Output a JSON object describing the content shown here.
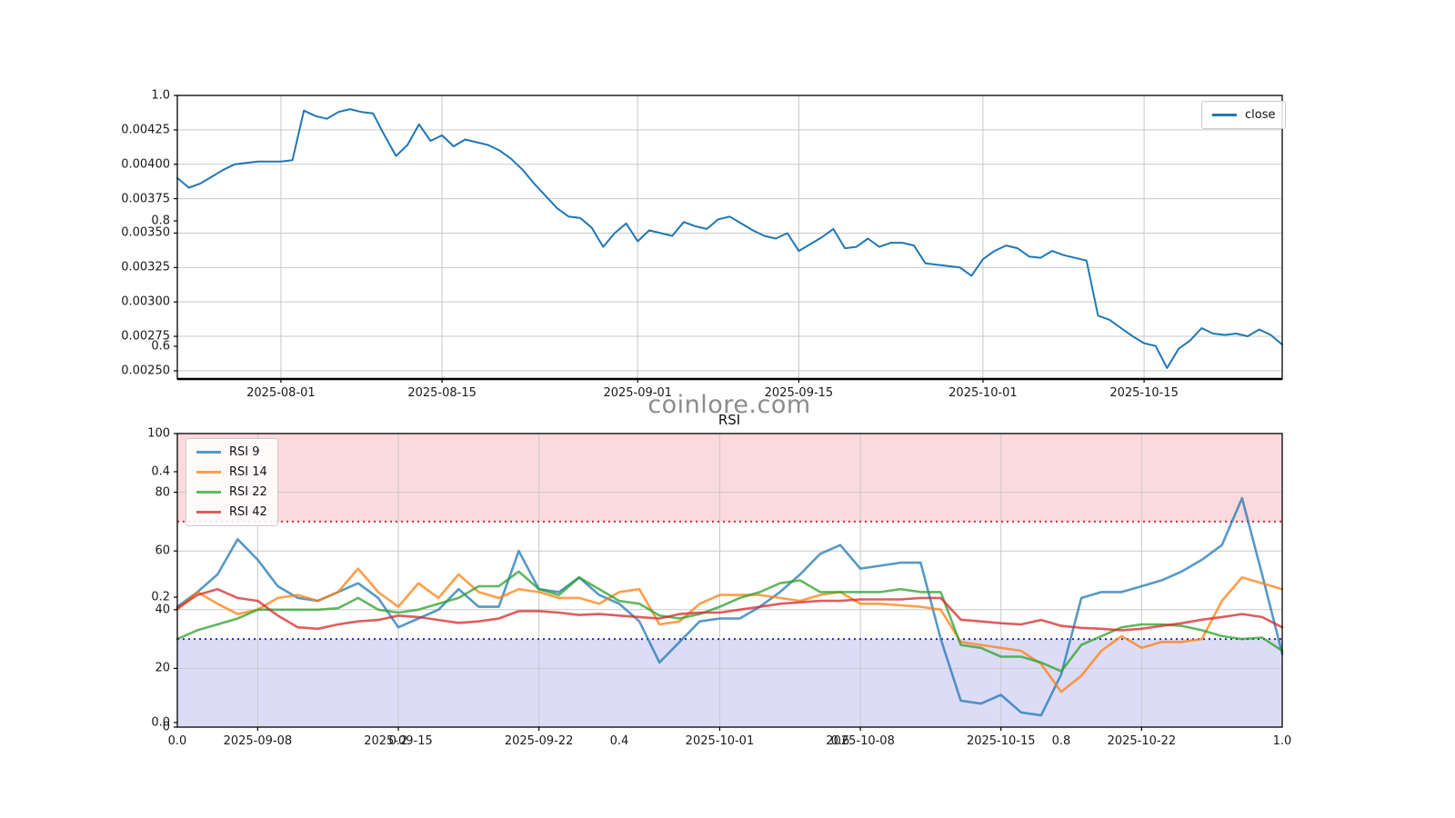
{
  "watermark": "coinlore.com",
  "charts": [
    {
      "id": "price",
      "title": "",
      "legend": {
        "position": "upper-right",
        "entries": [
          {
            "label": "close",
            "color": "#1f77b4",
            "alpha": 1
          }
        ]
      },
      "chart_data": {
        "type": "line",
        "x_start_date": "2025-07-23",
        "xticks": [
          "2025-08-01",
          "2025-08-15",
          "2025-09-01",
          "2025-09-15",
          "2025-10-01",
          "2025-10-15"
        ],
        "ylim": [
          0.00244,
          0.0045
        ],
        "yticks": [
          0.0025,
          0.00275,
          0.003,
          0.00325,
          0.0035,
          0.00375,
          0.004,
          0.00425
        ],
        "ytick_labels": [
          "0.00250",
          "0.00275",
          "0.00300",
          "0.00325",
          "0.00350",
          "0.00375",
          "0.00400",
          "0.00425"
        ],
        "grid": true,
        "series": [
          {
            "name": "close",
            "color": "#1f77b4",
            "alpha": 1,
            "width": 2,
            "values": [
              0.0039,
              0.00383,
              0.00386,
              0.00391,
              0.00396,
              0.004,
              0.00401,
              0.00402,
              0.00402,
              0.00402,
              0.00403,
              0.00439,
              0.00435,
              0.00433,
              0.00438,
              0.0044,
              0.00438,
              0.00437,
              0.00421,
              0.00406,
              0.00414,
              0.00429,
              0.00417,
              0.00421,
              0.00413,
              0.00418,
              0.00416,
              0.00414,
              0.0041,
              0.00404,
              0.00396,
              0.00386,
              0.00377,
              0.00368,
              0.00362,
              0.00361,
              0.00354,
              0.0034,
              0.0035,
              0.00357,
              0.00344,
              0.00352,
              0.0035,
              0.00348,
              0.00358,
              0.00355,
              0.00353,
              0.0036,
              0.00362,
              0.00357,
              0.00352,
              0.00348,
              0.00346,
              0.0035,
              0.00337,
              0.00342,
              0.00347,
              0.00353,
              0.00339,
              0.0034,
              0.00346,
              0.0034,
              0.00343,
              0.00343,
              0.00341,
              0.00328,
              0.00327,
              0.00326,
              0.00325,
              0.00319,
              0.00331,
              0.00337,
              0.00341,
              0.00339,
              0.00333,
              0.00332,
              0.00337,
              0.00334,
              0.00332,
              0.0033,
              0.0029,
              0.00287,
              0.00281,
              0.00275,
              0.0027,
              0.00268,
              0.00252,
              0.00266,
              0.00272,
              0.00281,
              0.00277,
              0.00276,
              0.00277,
              0.00275,
              0.0028,
              0.00276,
              0.00269
            ]
          }
        ]
      }
    },
    {
      "id": "rsi",
      "title": "RSI",
      "legend": {
        "position": "upper-left",
        "entries": [
          {
            "label": "RSI 9",
            "color": "#1f77b4",
            "alpha": 0.75
          },
          {
            "label": "RSI 14",
            "color": "#ff7f0e",
            "alpha": 0.75
          },
          {
            "label": "RSI 22",
            "color": "#2ca02c",
            "alpha": 0.75
          },
          {
            "label": "RSI 42",
            "color": "#d62728",
            "alpha": 0.75
          }
        ]
      },
      "chart_data": {
        "type": "line",
        "x_start_date": "2025-09-04",
        "xticks": [
          "2025-09-08",
          "2025-09-15",
          "2025-09-22",
          "2025-10-01",
          "2025-10-08",
          "2025-10-15",
          "2025-10-22"
        ],
        "ylim": [
          0,
          100
        ],
        "yticks": [
          0,
          20,
          40,
          60,
          80,
          100
        ],
        "ytick_labels": [
          "0",
          "20",
          "40",
          "60",
          "80",
          "100"
        ],
        "grid": true,
        "bands": [
          {
            "from": 70,
            "to": 100,
            "color": "#fbdadd",
            "meaning": "overbought-zone"
          },
          {
            "from": 0,
            "to": 30,
            "color": "#dddcf6",
            "meaning": "oversold-zone"
          }
        ],
        "thresholds": [
          {
            "value": 70,
            "color": "#d62a3a",
            "style": "dotted"
          },
          {
            "value": 30,
            "color": "#2a2ac0",
            "style": "dotted"
          }
        ],
        "series": [
          {
            "name": "RSI 9",
            "color": "#1f77b4",
            "alpha": 0.75,
            "width": 2.6,
            "values": [
              41,
              46,
              52,
              64,
              57,
              48,
              44,
              43,
              46,
              49,
              44,
              34,
              37,
              40,
              47,
              41,
              41,
              60,
              47,
              46,
              51,
              45,
              42,
              36,
              22,
              29,
              36,
              37,
              37,
              41,
              46,
              52,
              59,
              62,
              54,
              55,
              56,
              56,
              30,
              9,
              8,
              11,
              5,
              4,
              18,
              44,
              46,
              46,
              48,
              50,
              53,
              57,
              62,
              78,
              52,
              25
            ]
          },
          {
            "name": "RSI 14",
            "color": "#ff7f0e",
            "alpha": 0.75,
            "width": 2.6,
            "values": [
              40,
              46,
              42,
              38.5,
              40,
              44,
              45,
              43,
              46,
              54,
              46,
              41,
              49,
              44,
              52,
              46,
              44,
              47,
              46,
              44,
              44,
              42,
              46,
              47,
              35,
              36,
              42,
              45,
              45,
              45,
              44,
              43,
              45,
              46,
              42,
              42,
              41.5,
              41,
              40,
              29,
              28,
              27,
              26,
              21.5,
              12,
              17.5,
              26,
              31,
              27,
              29,
              29,
              30,
              43,
              51,
              49,
              47
            ]
          },
          {
            "name": "RSI 22",
            "color": "#2ca02c",
            "alpha": 0.75,
            "width": 2.6,
            "values": [
              30,
              33,
              35,
              37,
              40,
              40,
              40,
              40,
              40.5,
              44,
              40,
              39,
              40,
              42,
              44,
              48,
              48,
              53,
              47,
              45,
              51,
              47,
              43,
              42,
              38,
              37,
              38.5,
              41,
              44,
              46,
              49,
              50,
              46,
              46,
              46,
              46,
              47,
              46,
              46,
              28,
              27,
              24,
              24,
              22,
              19,
              28,
              31,
              34,
              35,
              35,
              34.5,
              33,
              31,
              30,
              30.5,
              26
            ]
          },
          {
            "name": "RSI 42",
            "color": "#d62728",
            "alpha": 0.75,
            "width": 2.6,
            "values": [
              40.5,
              45,
              47,
              44,
              43,
              38,
              34,
              33.5,
              35,
              36,
              36.5,
              38,
              37.5,
              36.5,
              35.5,
              36,
              37,
              39.5,
              39.5,
              39,
              38.2,
              38.5,
              38,
              37.5,
              37,
              38.5,
              39,
              39,
              40,
              41,
              42,
              42.5,
              43,
              43,
              43.5,
              43.5,
              43.5,
              44,
              44,
              36.6,
              36,
              35.4,
              35,
              36.5,
              34.5,
              33.8,
              33.5,
              33,
              33.5,
              34.5,
              35.4,
              36.6,
              37.5,
              38.5,
              37.5,
              34
            ]
          }
        ]
      }
    }
  ],
  "overlay_axis": {
    "y_labels": [
      "1.0",
      "0.8",
      "0.6",
      "0.4",
      "0.2",
      "0.0"
    ],
    "x_labels": [
      "0.0",
      "0.2",
      "0.4",
      "0.6",
      "0.8",
      "1.0"
    ]
  },
  "colors": {
    "grid": "#c9c9c9",
    "spine": "#000000",
    "tick_text": "#1a1a1a",
    "watermark": "#8c8c8c"
  }
}
